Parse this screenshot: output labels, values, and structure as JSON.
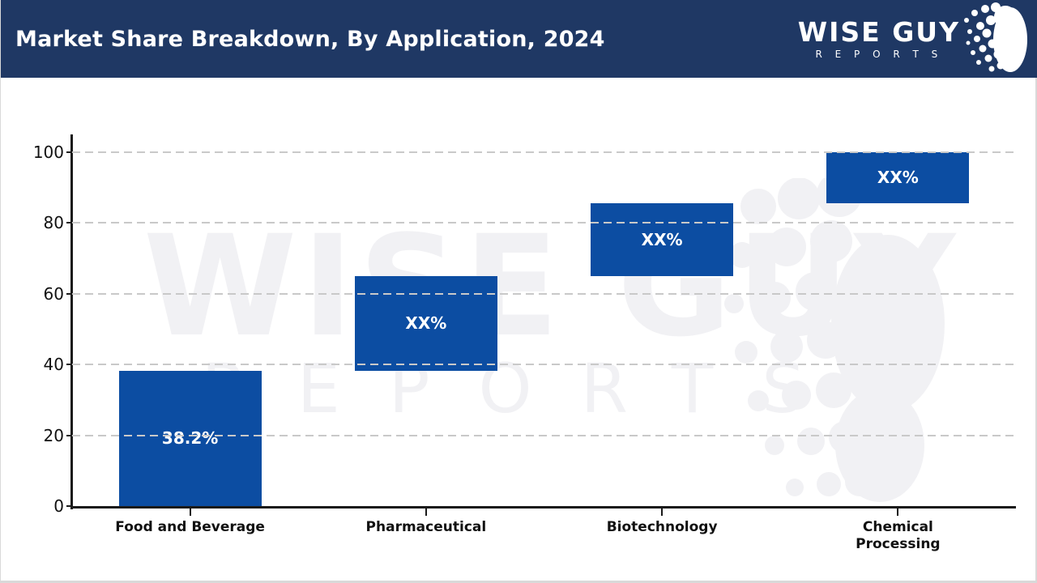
{
  "header": {
    "title": "Market Share Breakdown, By Application, 2024",
    "logo_line1": "WISE GUY",
    "logo_line2": "R E P O R T S"
  },
  "watermark": {
    "line1": "WISE GUY",
    "line2": "REPORTS"
  },
  "chart_data": {
    "type": "bar",
    "subtype": "waterfall",
    "title": "Market Share Breakdown, By Application, 2024",
    "categories": [
      "Food and Beverage",
      "Pharmaceutical",
      "Biotechnology",
      "Chemical Processing"
    ],
    "category_lines": [
      [
        "Food and Beverage"
      ],
      [
        "Pharmaceutical"
      ],
      [
        "Biotechnology"
      ],
      [
        "Chemical",
        "Processing"
      ]
    ],
    "segments": [
      {
        "category": "Food and Beverage",
        "start": 0,
        "end": 38.2,
        "label": "38.2%"
      },
      {
        "category": "Pharmaceutical",
        "start": 38.2,
        "end": 65,
        "label": "XX%"
      },
      {
        "category": "Biotechnology",
        "start": 65,
        "end": 85.5,
        "label": "XX%"
      },
      {
        "category": "Chemical Processing",
        "start": 85.5,
        "end": 100,
        "label": "XX%"
      }
    ],
    "yticks": [
      0,
      20,
      40,
      60,
      80,
      100
    ],
    "ylim": [
      0,
      105
    ],
    "xlabel": "",
    "ylabel": "",
    "grid": "horizontal-dashed",
    "legend": "none",
    "colors": {
      "bar": "#0C4DA2",
      "bar_label": "#FFFFFF",
      "axis": "#1A1A1A",
      "grid": "#C9C9C9",
      "header_bg": "#1F3864",
      "watermark": "#F1F1F4"
    }
  }
}
